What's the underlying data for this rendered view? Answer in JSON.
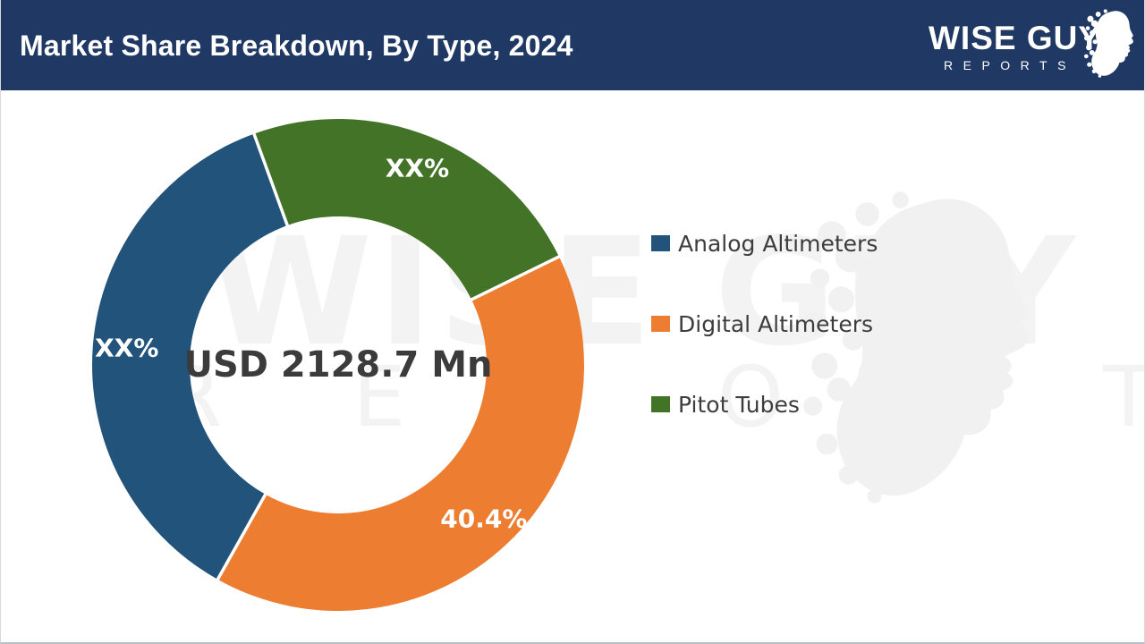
{
  "page": {
    "title": "Market Share Breakdown, By Type, 2024"
  },
  "logo": {
    "line1": "WISE GUY",
    "line2": "REPORTS",
    "icon": "dotted-face-profile-icon"
  },
  "watermark": {
    "line1": "WISE GUY",
    "line2": "R E P O R T S",
    "face_icon": "dotted-face-profile-icon",
    "color": "#F3F3F4"
  },
  "colors": {
    "header_bg": "#203864",
    "center_text": "#3B3B3B",
    "legend_text": "#3D3D3D",
    "segment_gap": "#FFFFFF"
  },
  "chart_data": {
    "type": "donut",
    "title": "Market Share Breakdown, By Type, 2024",
    "center_label": "USD 2128.7 Mn",
    "start_angle_deg": 110,
    "direction": "counterclockwise",
    "legend_position": "right",
    "segments": [
      {
        "label": "Analog Altimeters",
        "display_value": "XX%",
        "percent_est": 36.3,
        "color": "#21537B"
      },
      {
        "label": "Digital Altimeters",
        "display_value": "40.4%",
        "percent_est": 40.4,
        "color": "#ED7D31"
      },
      {
        "label": "Pitot Tubes",
        "display_value": "XX%",
        "percent_est": 23.3,
        "color": "#427327"
      }
    ]
  }
}
